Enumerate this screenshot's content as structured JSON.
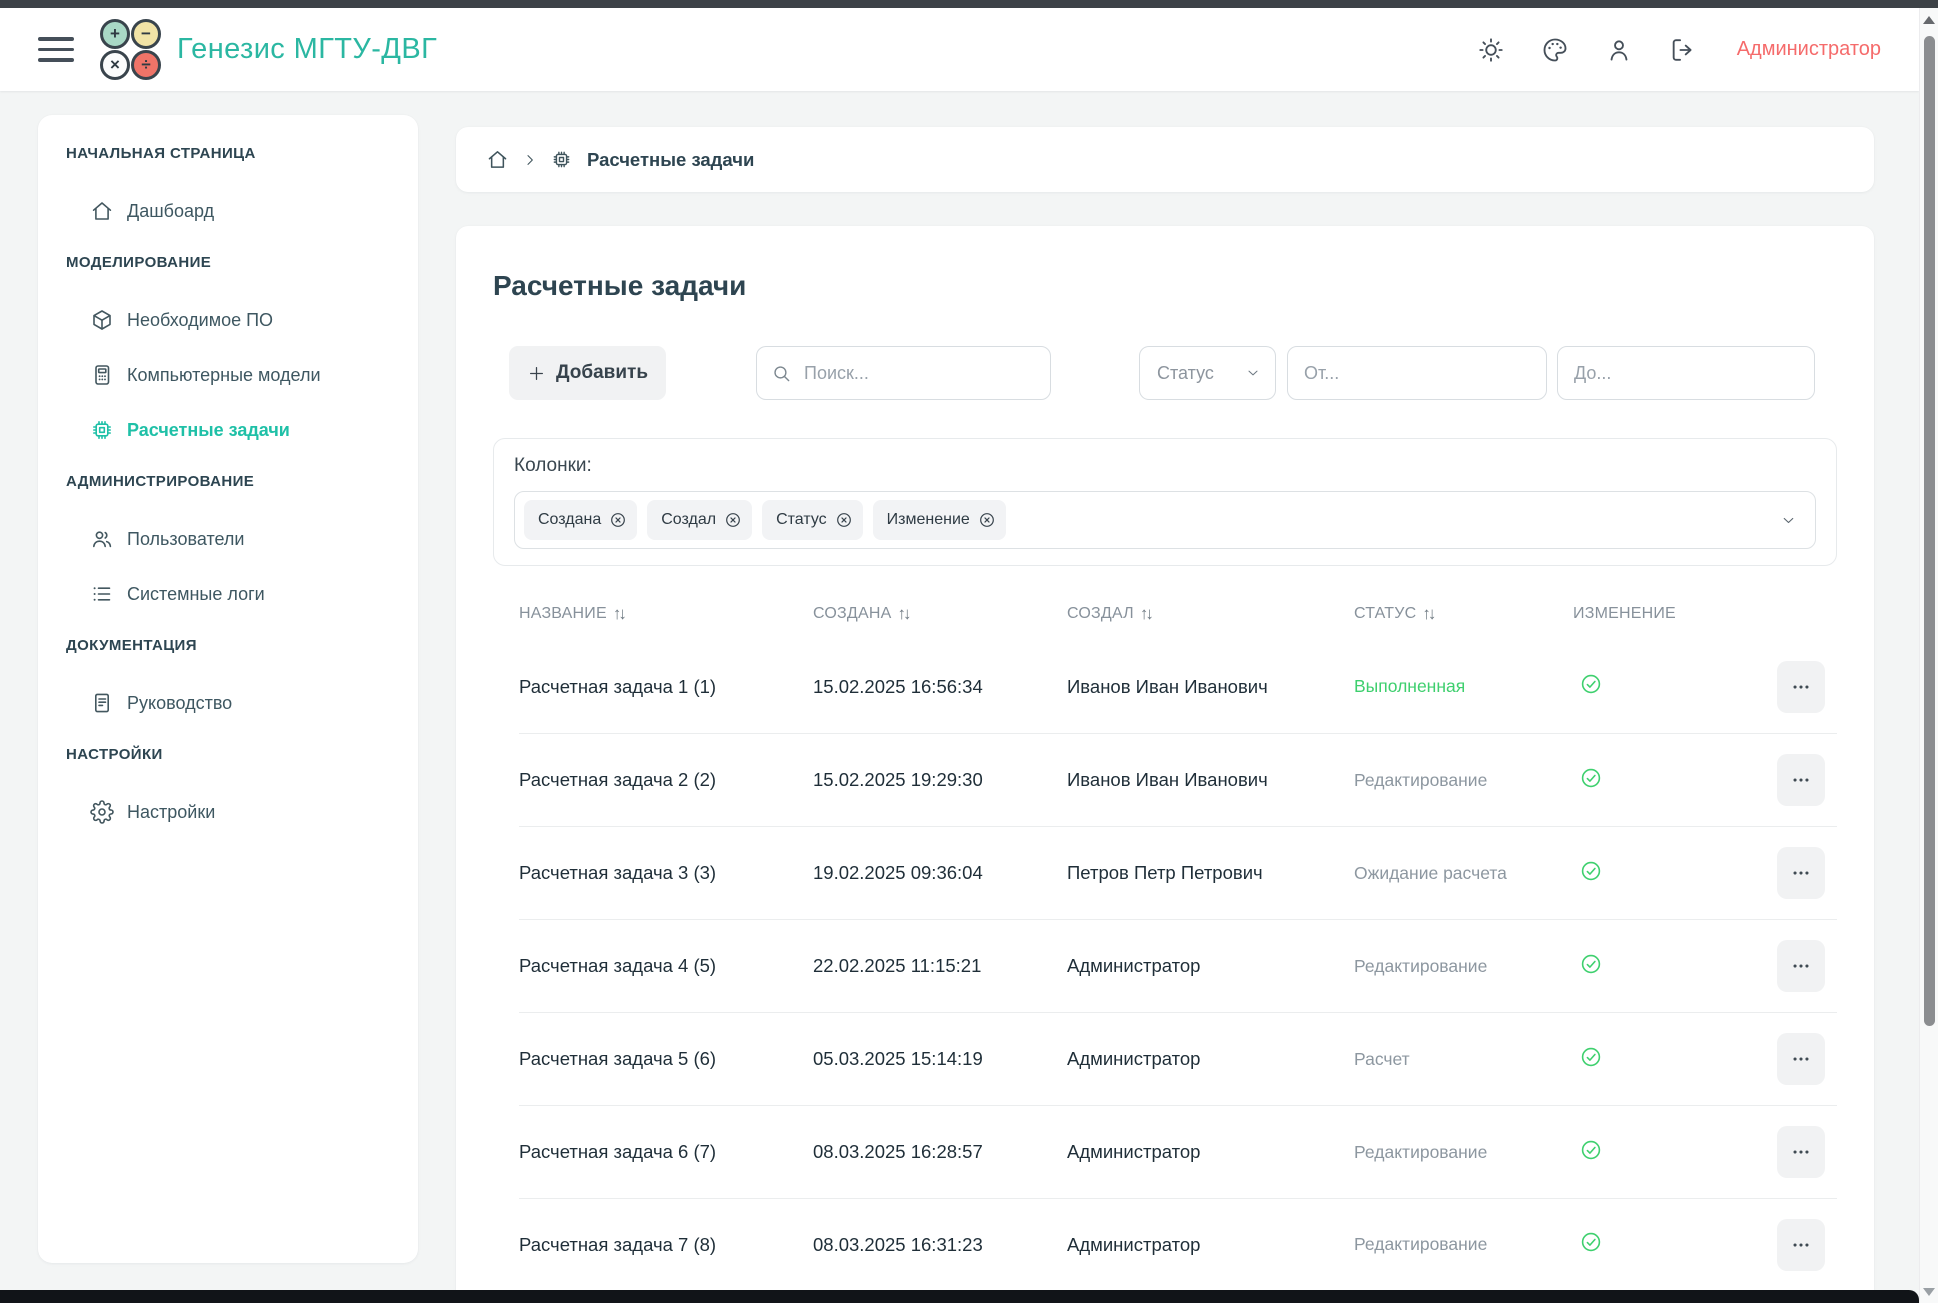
{
  "header": {
    "brand": "Генезис МГТУ-ДВГ",
    "logo_symbols": [
      "+",
      "−",
      "×",
      "÷"
    ],
    "user_role": "Администратор"
  },
  "sidebar": {
    "sections": [
      {
        "label": "НАЧАЛЬНАЯ СТРАНИЦА",
        "items": [
          {
            "id": "dashboard",
            "label": "Дашбоард",
            "icon": "home",
            "active": false
          }
        ]
      },
      {
        "label": "МОДЕЛИРОВАНИЕ",
        "items": [
          {
            "id": "software",
            "label": "Необходимое ПО",
            "icon": "package",
            "active": false
          },
          {
            "id": "models",
            "label": "Компьютерные модели",
            "icon": "calculator",
            "active": false
          },
          {
            "id": "tasks",
            "label": "Расчетные задачи",
            "icon": "chip",
            "active": true
          }
        ]
      },
      {
        "label": "АДМИНИСТРИРОВАНИЕ",
        "items": [
          {
            "id": "users",
            "label": "Пользователи",
            "icon": "users",
            "active": false
          },
          {
            "id": "logs",
            "label": "Системные логи",
            "icon": "list",
            "active": false
          }
        ]
      },
      {
        "label": "ДОКУМЕНТАЦИЯ",
        "items": [
          {
            "id": "manual",
            "label": "Руководство",
            "icon": "book",
            "active": false
          }
        ]
      },
      {
        "label": "НАСТРОЙКИ",
        "items": [
          {
            "id": "settings",
            "label": "Настройки",
            "icon": "gear",
            "active": false
          }
        ]
      }
    ]
  },
  "breadcrumb": {
    "current": "Расчетные задачи"
  },
  "page": {
    "title": "Расчетные задачи",
    "toolbar": {
      "add_label": "Добавить",
      "search_placeholder": "Поиск...",
      "status_placeholder": "Статус",
      "date_from_placeholder": "От...",
      "date_to_placeholder": "До..."
    },
    "columns_panel": {
      "label": "Колонки:",
      "chips": [
        "Создана",
        "Создал",
        "Статус",
        "Изменение"
      ]
    },
    "table": {
      "sort_glyph": "↑↓",
      "headers": [
        {
          "label": "НАЗВАНИЕ",
          "sortable": true
        },
        {
          "label": "СОЗДАНА",
          "sortable": true
        },
        {
          "label": "СОЗДАЛ",
          "sortable": true
        },
        {
          "label": "СТАТУС",
          "sortable": true
        },
        {
          "label": "ИЗМЕНЕНИЕ",
          "sortable": false
        },
        {
          "label": "",
          "sortable": false
        }
      ],
      "rows": [
        {
          "name": "Расчетная задача 1 (1)",
          "created": "15.02.2025 16:56:34",
          "author": "Иванов Иван Иванович",
          "status": "Выполненная",
          "status_done": true
        },
        {
          "name": "Расчетная задача 2 (2)",
          "created": "15.02.2025 19:29:30",
          "author": "Иванов Иван Иванович",
          "status": "Редактирование",
          "status_done": false
        },
        {
          "name": "Расчетная задача 3 (3)",
          "created": "19.02.2025 09:36:04",
          "author": "Петров Петр Петрович",
          "status": "Ожидание расчета",
          "status_done": false
        },
        {
          "name": "Расчетная задача 4 (5)",
          "created": "22.02.2025 11:15:21",
          "author": "Администратор",
          "status": "Редактирование",
          "status_done": false
        },
        {
          "name": "Расчетная задача 5 (6)",
          "created": "05.03.2025 15:14:19",
          "author": "Администратор",
          "status": "Расчет",
          "status_done": false
        },
        {
          "name": "Расчетная задача 6 (7)",
          "created": "08.03.2025 16:28:57",
          "author": "Администратор",
          "status": "Редактирование",
          "status_done": false
        },
        {
          "name": "Расчетная задача 7 (8)",
          "created": "08.03.2025 16:31:23",
          "author": "Администратор",
          "status": "Редактирование",
          "status_done": false
        }
      ]
    }
  },
  "colors": {
    "accent_teal": "#2bb7a2",
    "status_done_green": "#3ecf6e",
    "user_role_red": "#f56b6b"
  }
}
